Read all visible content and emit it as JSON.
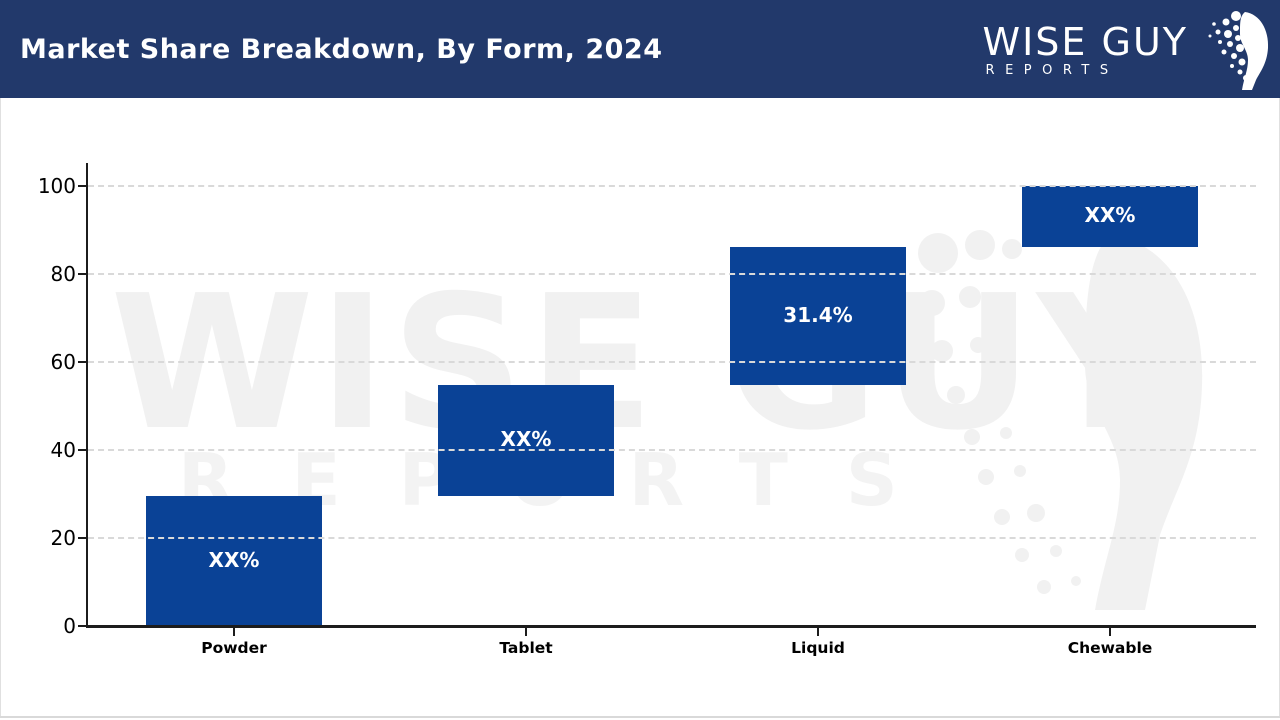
{
  "header": {
    "title": "Market Share Breakdown, By Form, 2024",
    "logo": {
      "line1": "WISE GUY",
      "line2": "REPORTS"
    }
  },
  "watermark": {
    "line1": "WISE GUY",
    "line2": "REPORTS"
  },
  "colors": {
    "header_bg": "#22396b",
    "bar_blue": "#0a4296",
    "grid": "#d9d9d9",
    "axis": "#1c1c1c",
    "bar_label_text": "#ffffff",
    "watermark_grey": "#f1f1f1"
  },
  "chart_data": {
    "type": "bar",
    "subtype": "waterfall",
    "title": "Market Share Breakdown, By Form, 2024",
    "categories": [
      "Powder",
      "Tablet",
      "Liquid",
      "Chewable"
    ],
    "segments": [
      {
        "category": "Powder",
        "start": 0,
        "end": 29.6,
        "value_label": "XX%"
      },
      {
        "category": "Tablet",
        "start": 29.6,
        "end": 54.8,
        "value_label": "XX%"
      },
      {
        "category": "Liquid",
        "start": 54.8,
        "end": 86.2,
        "value_label": "31.4%"
      },
      {
        "category": "Chewable",
        "start": 86.2,
        "end": 100,
        "value_label": "XX%"
      }
    ],
    "xlabel": "",
    "ylabel": "",
    "ylim": [
      0,
      100
    ],
    "yticks": [
      0,
      20,
      40,
      60,
      80,
      100
    ],
    "grid": "horizontal-dashed",
    "legend": "none",
    "bar_color": "#0a4296"
  }
}
